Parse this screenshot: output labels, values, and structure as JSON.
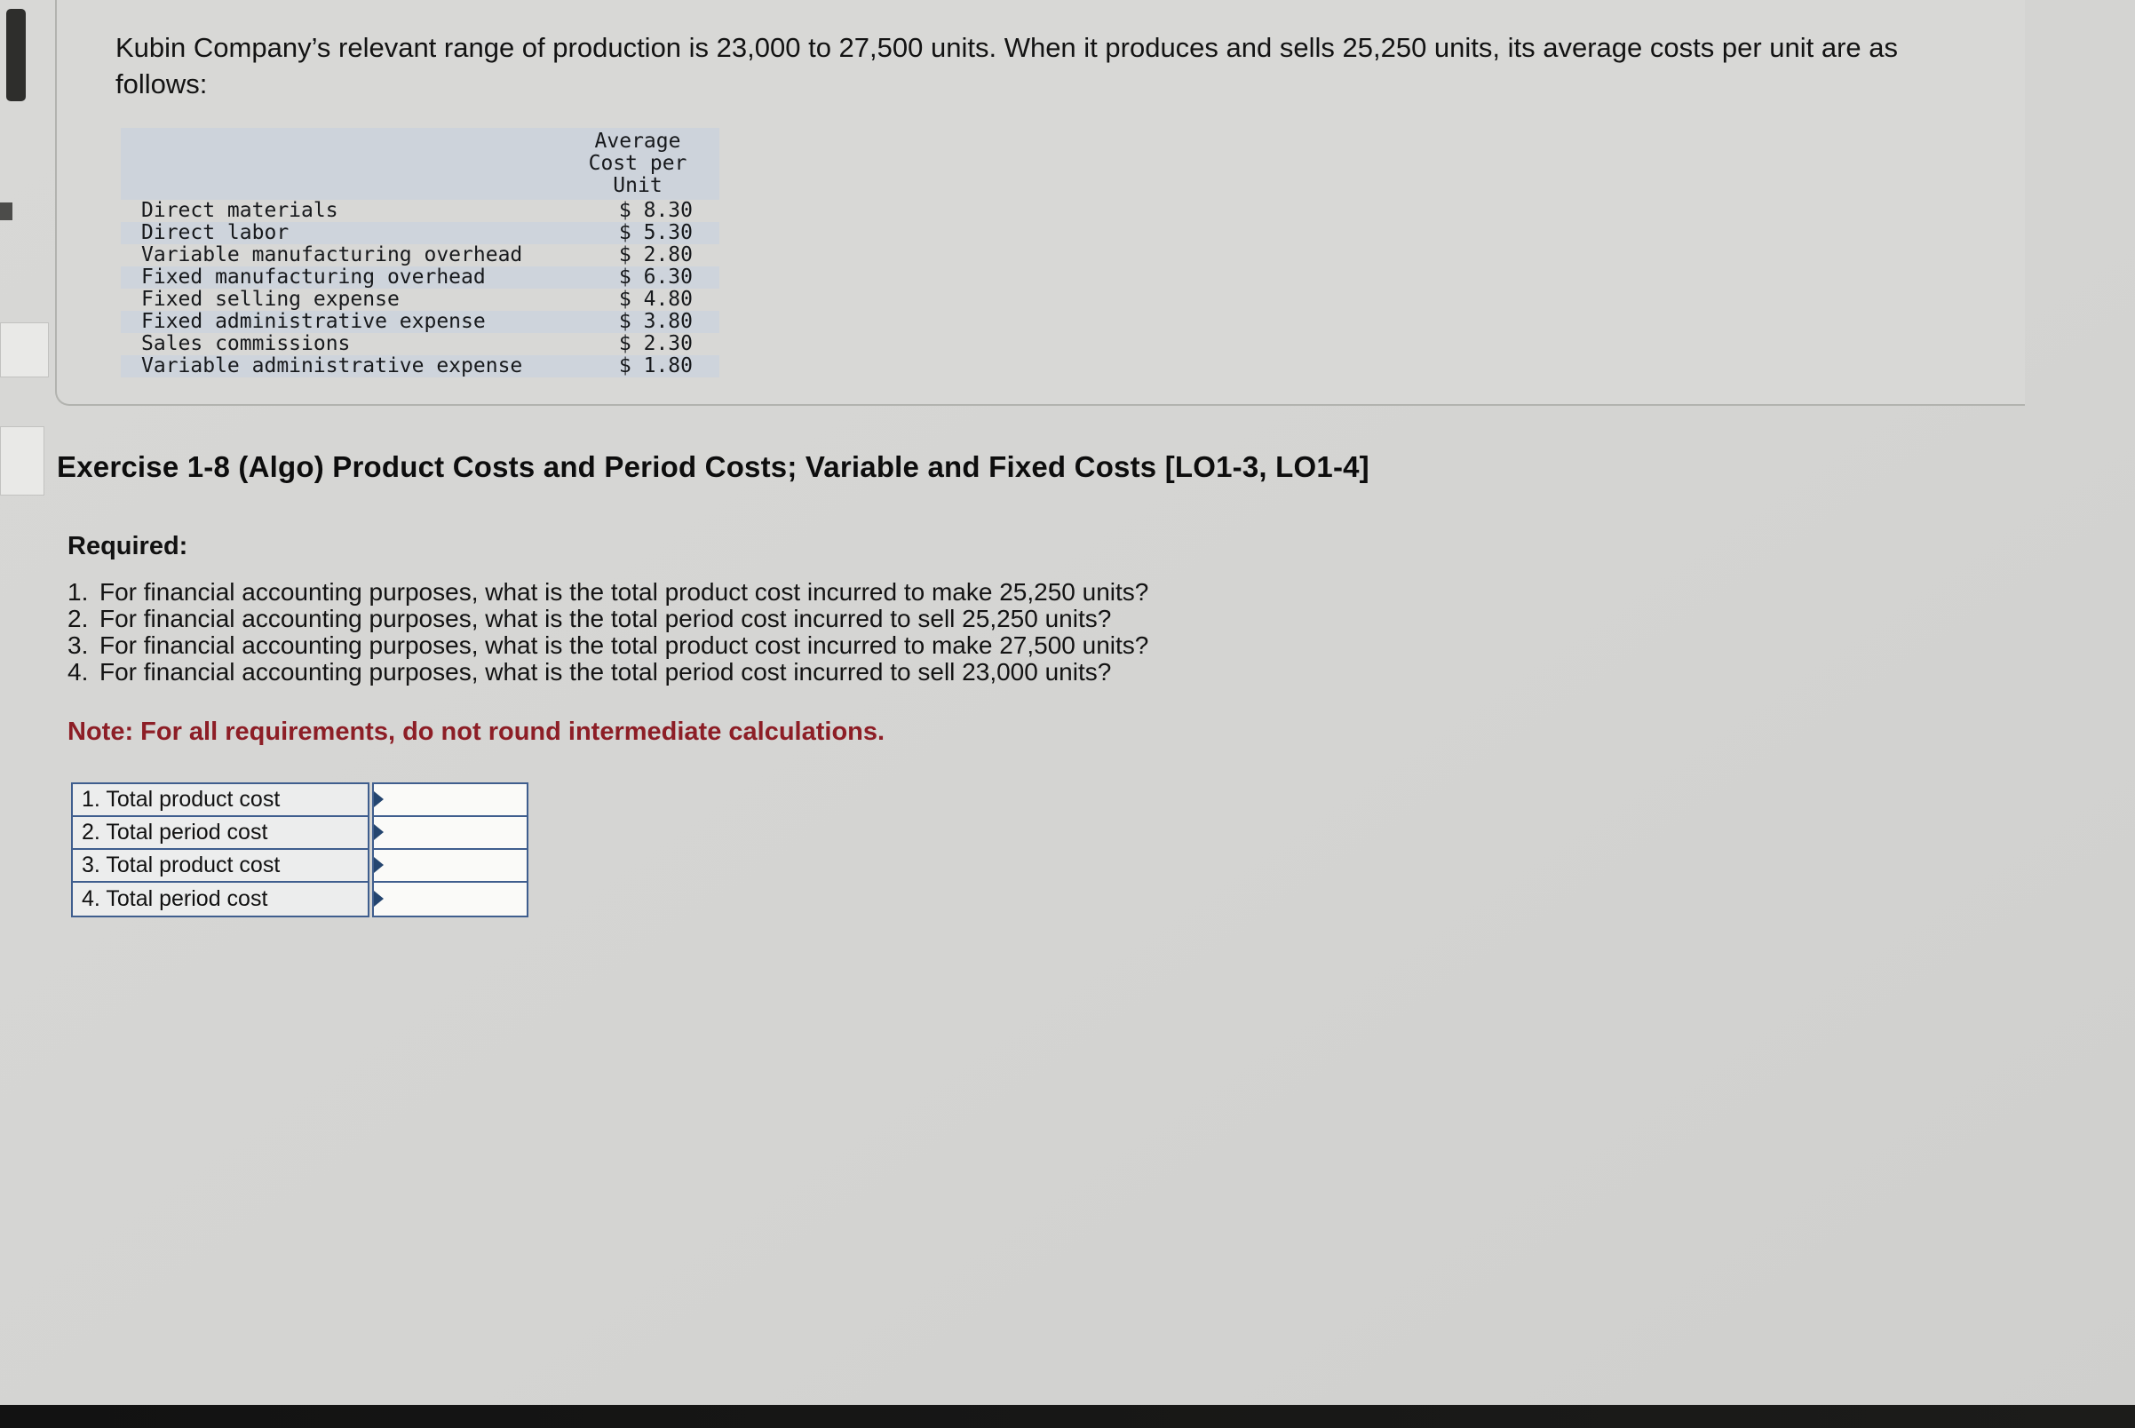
{
  "problem": {
    "intro": "Kubin Company’s relevant range of production is 23,000 to 27,500 units. When it produces and sells 25,250 units, its average costs per unit are as follows:"
  },
  "cost_table": {
    "header": "Average\nCost per\nUnit",
    "rows": [
      {
        "label": "Direct materials",
        "value": "$ 8.30"
      },
      {
        "label": "Direct labor",
        "value": "$ 5.30"
      },
      {
        "label": "Variable manufacturing overhead",
        "value": "$ 2.80"
      },
      {
        "label": "Fixed manufacturing overhead",
        "value": "$ 6.30"
      },
      {
        "label": "Fixed selling expense",
        "value": "$ 4.80"
      },
      {
        "label": "Fixed administrative expense",
        "value": "$ 3.80"
      },
      {
        "label": "Sales commissions",
        "value": "$ 2.30"
      },
      {
        "label": "Variable administrative expense",
        "value": "$ 1.80"
      }
    ]
  },
  "exercise": {
    "title": "Exercise 1-8 (Algo) Product Costs and Period Costs; Variable and Fixed Costs [LO1-3, LO1-4]",
    "required_label": "Required:",
    "questions": [
      {
        "number": "1.",
        "text": "For financial accounting purposes, what is the total product cost incurred to make 25,250 units?"
      },
      {
        "number": "2.",
        "text": "For financial accounting purposes, what is the total period cost incurred to sell 25,250 units?"
      },
      {
        "number": "3.",
        "text": "For financial accounting purposes, what is the total product cost incurred to make 27,500 units?"
      },
      {
        "number": "4.",
        "text": "For financial accounting purposes, what is the total period cost incurred to sell 23,000 units?"
      }
    ],
    "note": "Note: For all requirements, do not round intermediate calculations."
  },
  "answer_table": {
    "rows": [
      {
        "label": "1. Total product cost",
        "value": ""
      },
      {
        "label": "2. Total period cost",
        "value": ""
      },
      {
        "label": "3. Total product cost",
        "value": ""
      },
      {
        "label": "4. Total period cost",
        "value": ""
      }
    ]
  },
  "colors": {
    "page_bg": "#d5d5d3",
    "table_header_bg": "#cdd3db",
    "table_stripe_bg": "#ced4dc",
    "note_color": "#8d1e26",
    "answer_border": "#3f5e8e",
    "marker_color": "#24456f"
  }
}
